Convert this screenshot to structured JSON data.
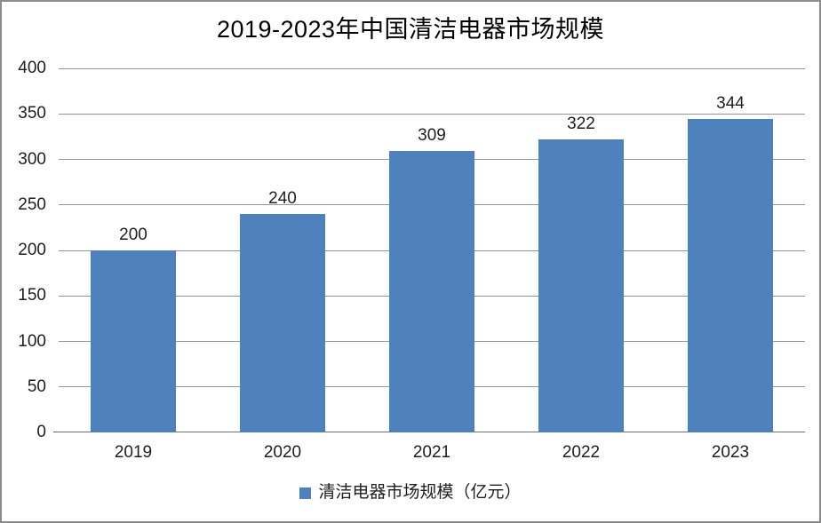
{
  "title": "2019-2023年中国清洁电器市场规模",
  "legend": {
    "label": "清洁电器市场规模（亿元）"
  },
  "colors": {
    "bar": "#4F81BD",
    "gridline": "#969696",
    "axis_line": "#6F6F6F",
    "frame_border": "#8C8C8C"
  },
  "chart_data": {
    "type": "bar",
    "title": "2019-2023年中国清洁电器市场规模",
    "categories": [
      "2019",
      "2020",
      "2021",
      "2022",
      "2023"
    ],
    "values": [
      200,
      240,
      309,
      322,
      344
    ],
    "series_name": "清洁电器市场规模（亿元）",
    "xlabel": "",
    "ylabel": "",
    "ylim": [
      0,
      400
    ],
    "yticks": [
      0,
      50,
      100,
      150,
      200,
      250,
      300,
      350,
      400
    ],
    "grid": true,
    "data_labels": true,
    "legend_position": "bottom"
  }
}
